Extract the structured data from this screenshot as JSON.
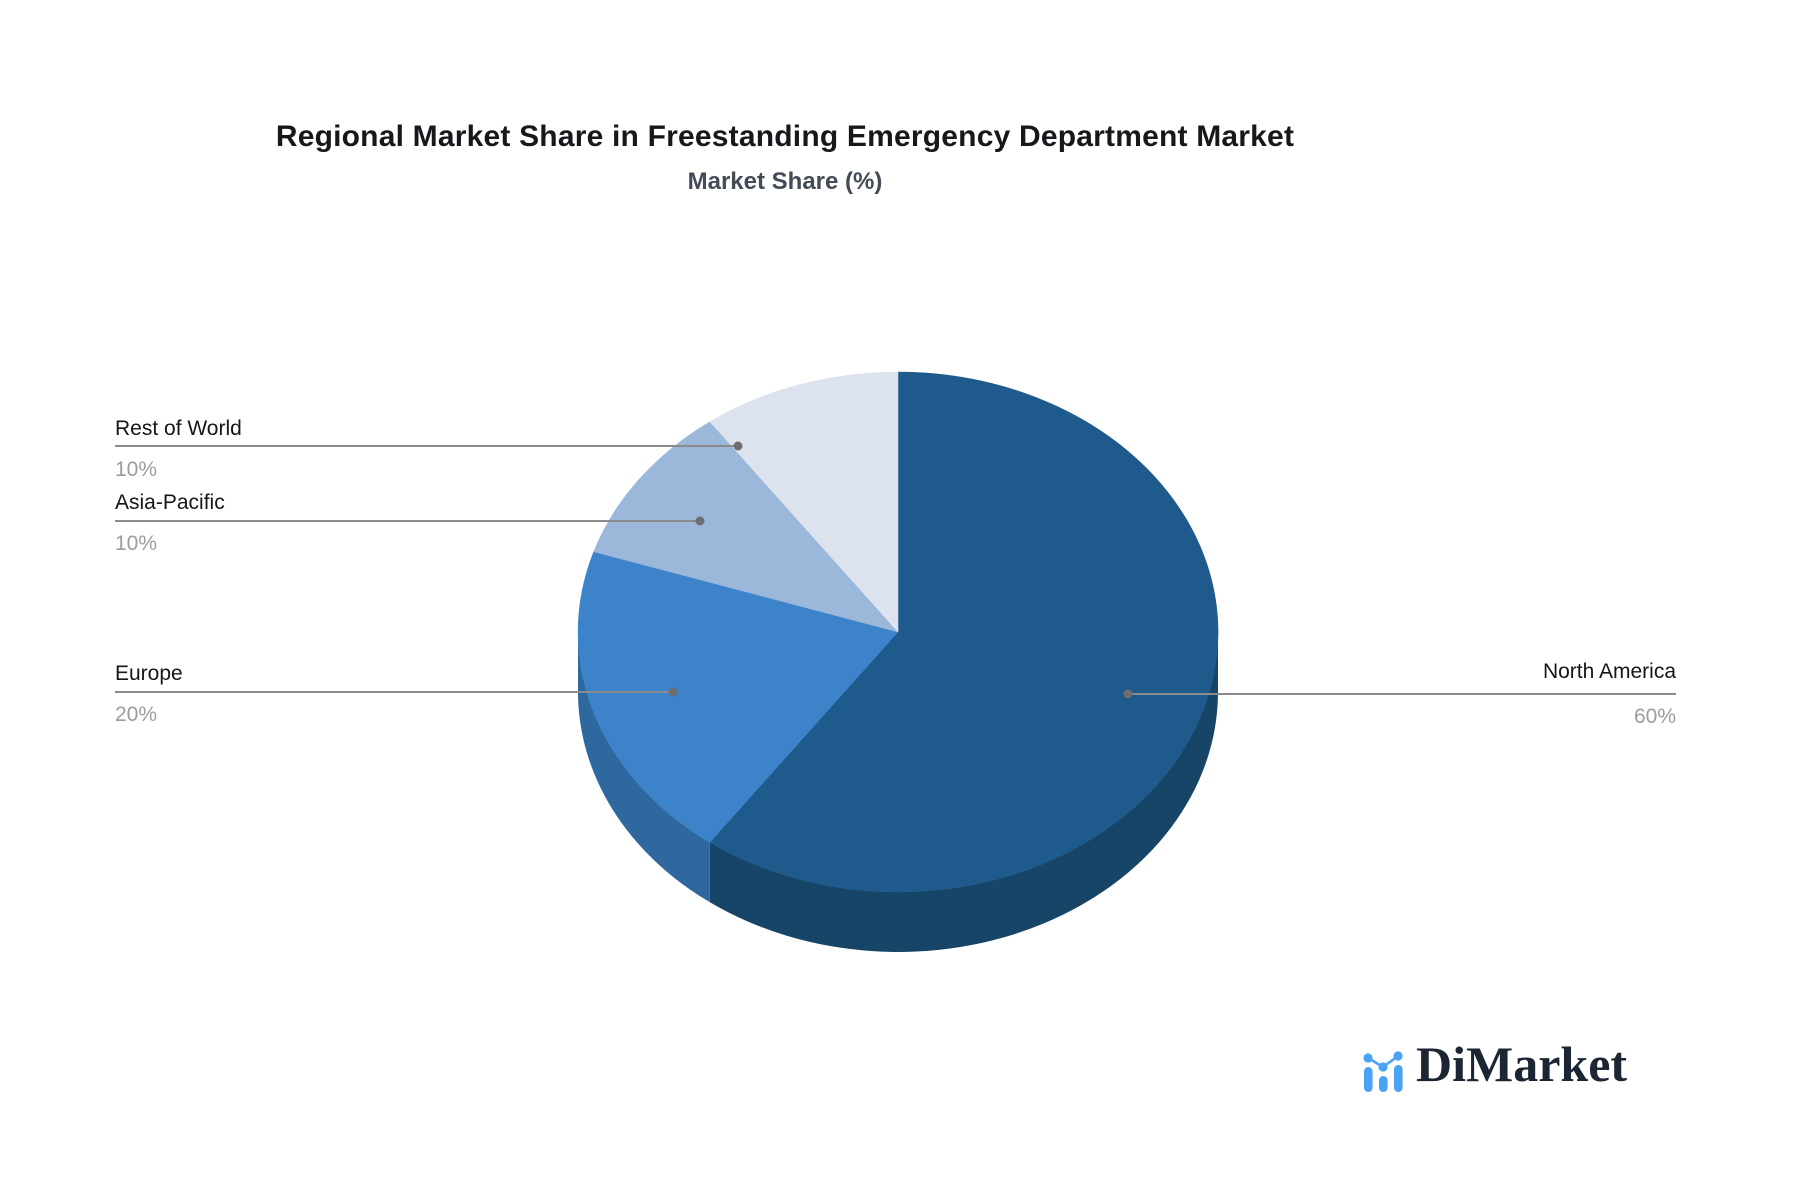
{
  "title": "Regional Market Share in Freestanding Emergency Department Market",
  "subtitle": "Market Share (%)",
  "watermark": {
    "brand": "DiMarket",
    "icon": "bar-chart-logo-icon",
    "icon_color": "#4aa2f5",
    "text_color": "#1c2534"
  },
  "chart_data": {
    "type": "pie",
    "title": "Regional Market Share in Freestanding Emergency Department Market",
    "subtitle": "Market Share (%)",
    "unit": "%",
    "effect_3d": true,
    "start_angle_deg": 0,
    "direction": "clockwise",
    "legend": "none",
    "slices": [
      {
        "label": "North America",
        "value": 60,
        "percent_label": "60%",
        "color": "#1e5b8c",
        "side_color": "#174568",
        "callout_side": "right"
      },
      {
        "label": "Europe",
        "value": 20,
        "percent_label": "20%",
        "color": "#3c83ca",
        "side_color": "#2f689e",
        "callout_side": "left"
      },
      {
        "label": "Asia-Pacific",
        "value": 10,
        "percent_label": "10%",
        "color": "#9bb8db",
        "callout_side": "left"
      },
      {
        "label": "Rest of World",
        "value": 10,
        "percent_label": "10%",
        "color": "#dde3ee",
        "callout_side": "left"
      }
    ],
    "style_colors": {
      "leader_line": "#8b8b8b",
      "leader_dot": "#6e6e6e",
      "label_text": "#161616",
      "percent_text": "#9c9c9c"
    }
  }
}
